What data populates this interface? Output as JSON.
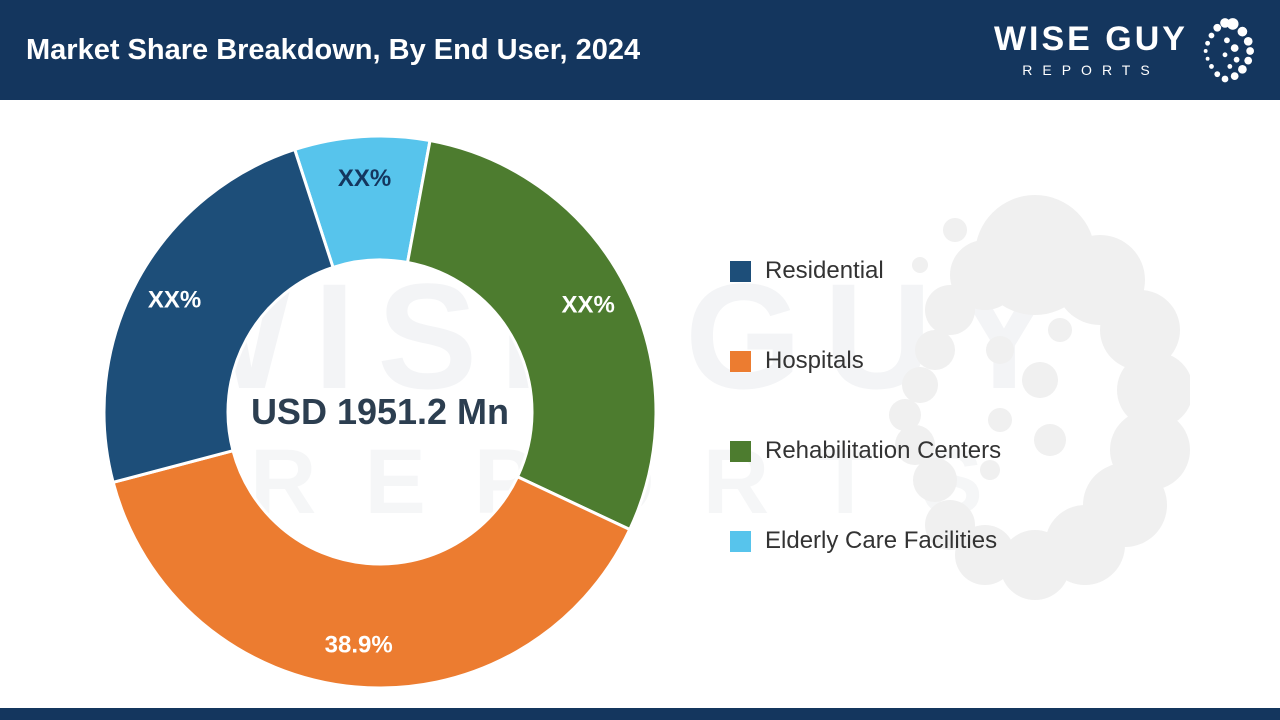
{
  "header": {
    "title": "Market Share Breakdown, By End User, 2024",
    "logo_line1": "WISE GUY",
    "logo_line2": "REPORTS"
  },
  "colors": {
    "header_bg": "#14365e",
    "footer_bg": "#14365e",
    "center_text": "#2c3e50",
    "legend_text": "#333333"
  },
  "watermark": {
    "line1": "WISE GUY",
    "line2": "REPORTS"
  },
  "chart_data": {
    "type": "pie",
    "variant": "donut",
    "title": "Market Share Breakdown, By End User, 2024",
    "center_label": "USD 1951.2 Mn",
    "legend_position": "right",
    "start_angle_deg": 108,
    "direction": "clockwise",
    "draw_order": [
      3,
      2,
      1,
      0
    ],
    "segments": [
      {
        "label": "Residential",
        "value": 24.1,
        "display_label": "XX%",
        "color": "#1d4e79",
        "label_color": "#ffffff"
      },
      {
        "label": "Hospitals",
        "value": 38.9,
        "display_label": "38.9%",
        "color": "#ec7c30",
        "label_color": "#ffffff"
      },
      {
        "label": "Rehabilitation Centers",
        "value": 29.1,
        "display_label": "XX%",
        "color": "#4d7c2f",
        "label_color": "#ffffff"
      },
      {
        "label": "Elderly Care Facilities",
        "value": 7.9,
        "display_label": "XX%",
        "color": "#57c4ec",
        "label_color": "#14365e"
      }
    ]
  }
}
